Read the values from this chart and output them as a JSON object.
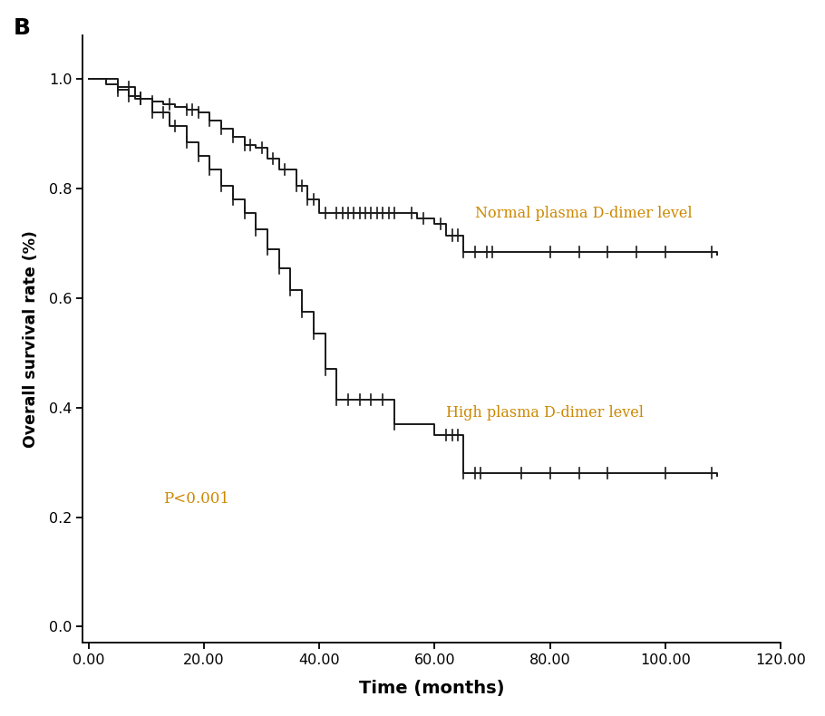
{
  "title_label": "B",
  "xlabel": "Time (months)",
  "ylabel": "Overall survival rate (%)",
  "xlim": [
    -1,
    120
  ],
  "ylim": [
    -0.03,
    1.08
  ],
  "xticks": [
    0,
    20,
    40,
    60,
    80,
    100,
    120
  ],
  "yticks": [
    0.0,
    0.2,
    0.4,
    0.6,
    0.8,
    1.0
  ],
  "pvalue_text": "P<0.001",
  "pvalue_color": "#cc8800",
  "label_normal": "Normal plasma D-dimer level",
  "label_high": "High plasma D-dimer level",
  "label_color": "#cc8800",
  "line_color": "#1a1a1a",
  "norm_t": [
    0,
    3,
    5,
    7,
    9,
    11,
    13,
    15,
    17,
    19,
    21,
    23,
    25,
    27,
    29,
    31,
    33,
    36,
    38,
    40,
    57,
    60,
    62,
    65,
    109
  ],
  "norm_s": [
    1.0,
    0.99,
    0.98,
    0.97,
    0.965,
    0.96,
    0.955,
    0.95,
    0.945,
    0.94,
    0.925,
    0.91,
    0.895,
    0.88,
    0.875,
    0.855,
    0.835,
    0.805,
    0.78,
    0.755,
    0.745,
    0.735,
    0.715,
    0.685,
    0.68
  ],
  "high_t": [
    0,
    5,
    8,
    11,
    14,
    17,
    19,
    21,
    23,
    25,
    27,
    29,
    31,
    33,
    35,
    37,
    39,
    41,
    43,
    53,
    60,
    65,
    109
  ],
  "high_s": [
    1.0,
    0.985,
    0.965,
    0.94,
    0.915,
    0.885,
    0.86,
    0.835,
    0.805,
    0.78,
    0.755,
    0.725,
    0.69,
    0.655,
    0.615,
    0.575,
    0.535,
    0.47,
    0.415,
    0.37,
    0.35,
    0.28,
    0.275
  ],
  "norm_censor_t": [
    5,
    7,
    9,
    11,
    14,
    17,
    18,
    19,
    21,
    23,
    25,
    27,
    28,
    30,
    32,
    34,
    36,
    37,
    38,
    39,
    41,
    43,
    44,
    45,
    46,
    47,
    48,
    49,
    50,
    51,
    52,
    53,
    56,
    58,
    61,
    63,
    64,
    65,
    67,
    69,
    70,
    80,
    85,
    90,
    95,
    100,
    108
  ],
  "high_censor_t": [
    5,
    7,
    9,
    11,
    13,
    15,
    17,
    19,
    21,
    23,
    25,
    27,
    29,
    31,
    33,
    35,
    37,
    39,
    41,
    43,
    45,
    47,
    49,
    51,
    53,
    62,
    63,
    64,
    65,
    67,
    68,
    75,
    80,
    85,
    90,
    100,
    108
  ]
}
